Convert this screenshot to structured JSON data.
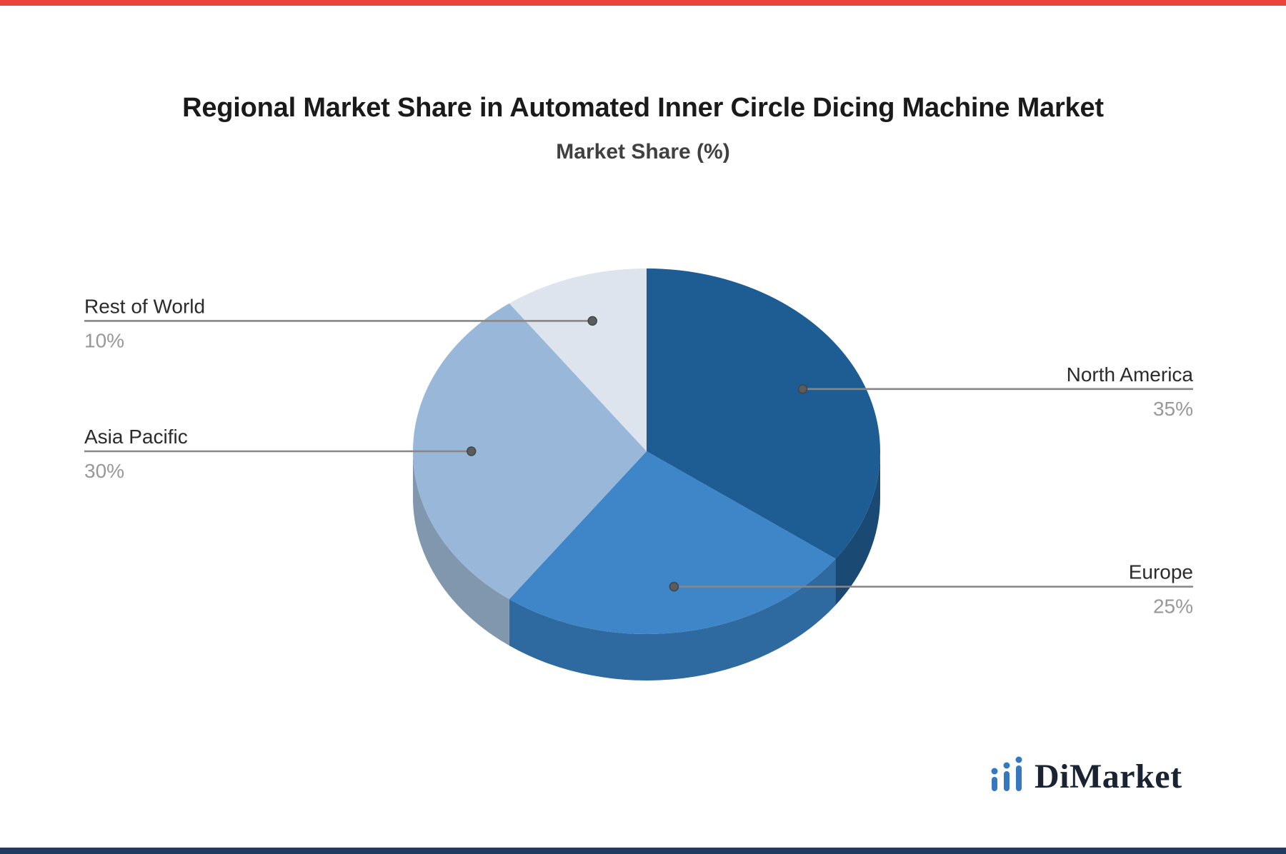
{
  "page": {
    "background": "#ffffff",
    "top_strip_color": "#e8443c",
    "bottom_strip_color": "#203a61"
  },
  "header": {
    "title": "Regional Market Share in Automated Inner Circle Dicing Machine Market",
    "subtitle": "Market Share (%)"
  },
  "chart_data": {
    "type": "pie",
    "style": "3d",
    "title": "Regional Market Share in Automated Inner Circle Dicing Machine Market",
    "subtitle": "Market Share (%)",
    "unit": "%",
    "direction": "clockwise",
    "start": "top",
    "legend_position": "none",
    "categories": [
      "North America",
      "Europe",
      "Asia Pacific",
      "Rest of World"
    ],
    "values": [
      35,
      25,
      30,
      10
    ],
    "value_labels": [
      "35%",
      "25%",
      "30%",
      "10%"
    ],
    "slice_colors": [
      "#1e5c94",
      "#3e86c7",
      "#98b7d9",
      "#dde4ee"
    ],
    "slice_side_colors": [
      "#1a4a74",
      "#2e6aa0",
      "#8097ad",
      "#b9c6d6"
    ],
    "leader_line_color": "#878787",
    "leader_dot_color": "#5b5c5e",
    "label_color": "#2b2b2b",
    "value_color": "#98989a"
  },
  "branding": {
    "logo_text": "DiMarket",
    "logo_icon": "bar-chart-logo-icon",
    "wordmark_color": "#1a2332",
    "icon_color": "#3578bd"
  }
}
